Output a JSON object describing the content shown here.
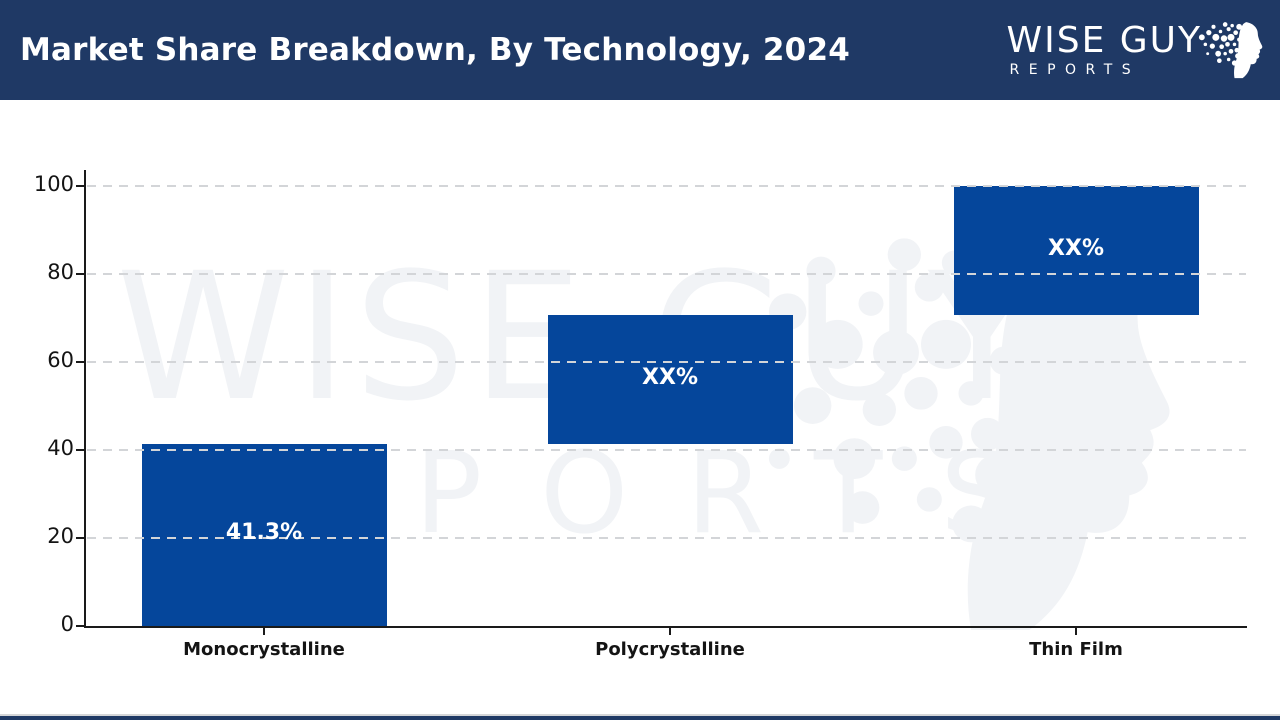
{
  "header": {
    "title": "Market Share Breakdown, By Technology, 2024",
    "background_color": "#1f3965",
    "logo": {
      "wordmark": "WISE GUY",
      "subtext": "REPORTS"
    }
  },
  "watermark": {
    "wordmark": "WISE GUY",
    "subtext": "REPORTS"
  },
  "chart_data": {
    "type": "bar",
    "subtype": "waterfall",
    "title": "Market Share Breakdown, By Technology, 2024",
    "categories": [
      "Monocrystalline",
      "Polycrystalline",
      "Thin Film"
    ],
    "series": [
      {
        "name": "Market Share (%)",
        "segments": [
          {
            "category": "Monocrystalline",
            "start": 0,
            "end": 41.3,
            "label": "41.3%"
          },
          {
            "category": "Polycrystalline",
            "start": 41.3,
            "end": 70.6,
            "label": "XX%"
          },
          {
            "category": "Thin Film",
            "start": 70.6,
            "end": 100,
            "label": "XX%"
          }
        ]
      }
    ],
    "yticks": [
      0,
      20,
      40,
      60,
      80,
      100
    ],
    "ylim": [
      0,
      103.8
    ],
    "xlabel": "",
    "ylabel": "",
    "grid": true,
    "gridline_style": "dashed",
    "legend": false,
    "bar_color": "#05469b",
    "bar_label_color": "#ffffff",
    "axis_color": "#1a1a1a"
  }
}
